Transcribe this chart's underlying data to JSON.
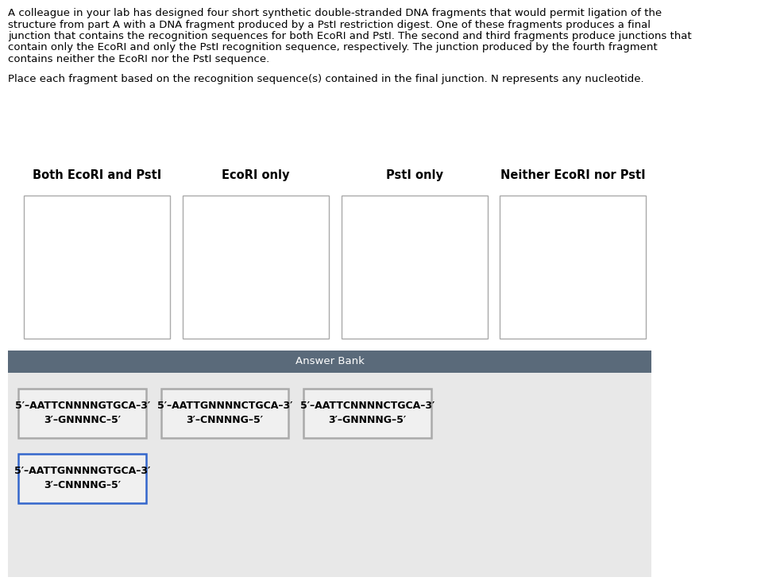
{
  "paragraph1": "A colleague in your lab has designed four short synthetic double-stranded DNA fragments that would permit ligation of the structure from part A with a DNA fragment produced by a PstI restriction digest. One of these fragments produces a final junction that contains the recognition sequences for both EcoRI and PstI. The second and third fragments produce junctions that contain only the EcoRI and only the PstI recognition sequence, respectively. The junction produced by the fourth fragment contains neither the EcoRI nor the PstI sequence.",
  "paragraph2": "Place each fragment based on the recognition sequence(s) contained in the final junction. N represents any nucleotide.",
  "drop_zone_labels": [
    "Both EcoRI and PstI",
    "EcoRI only",
    "PstI only",
    "Neither EcoRI nor PstI"
  ],
  "answer_bank_header": "Answer Bank",
  "answer_bank_header_bg": "#5a6a7a",
  "answer_bank_header_fg": "#ffffff",
  "answer_bank_bg": "#e8e8e8",
  "fragments": [
    {
      "line1": "5′–AATTCNNNNGTGCA–3′",
      "line2": "3′–GNNNNC–5′",
      "border": "#aaaaaa",
      "bg": "#f0f0f0",
      "row": 0,
      "col": 0
    },
    {
      "line1": "5′–AATTGNNNNCTGCA–3′",
      "line2": "3′–CNNNNG–5′",
      "border": "#aaaaaa",
      "bg": "#f0f0f0",
      "row": 0,
      "col": 1
    },
    {
      "line1": "5′–AATTCNNNNCTGCA–3′",
      "line2": "3′–GNNNNG–5′",
      "border": "#aaaaaa",
      "bg": "#f0f0f0",
      "row": 0,
      "col": 2
    },
    {
      "line1": "5′–AATTGNNNNGTGCA–3′",
      "line2": "3′–CNNNNG–5′",
      "border": "#3366cc",
      "bg": "#f0f0f0",
      "row": 1,
      "col": 0
    }
  ],
  "bg_color": "#ffffff",
  "box_border_color": "#aaaaaa",
  "drop_zone_bg": "#ffffff",
  "text_color": "#000000",
  "font_size_para": 9.5,
  "font_size_label": 10.5,
  "font_size_fragment": 9.0,
  "font_size_answer_bank": 9.5
}
